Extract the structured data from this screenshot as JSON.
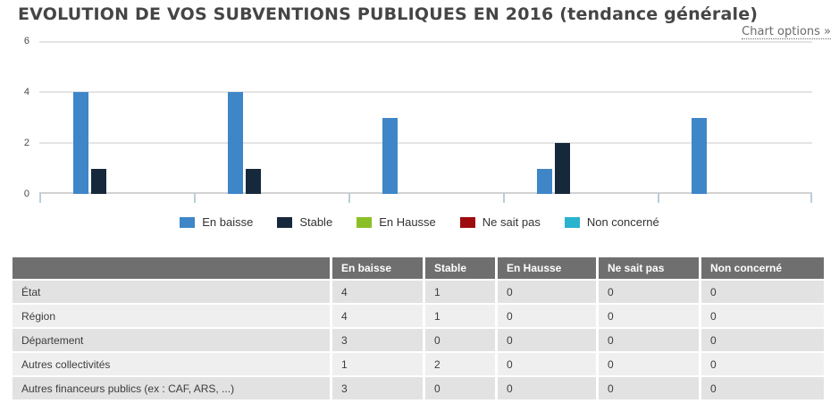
{
  "header": {
    "title": "EVOLUTION DE VOS SUBVENTIONS PUBLIQUES EN 2016 (tendance générale)",
    "chart_options_label": "Chart options »"
  },
  "colors": {
    "en_baisse": "#3e86c8",
    "stable": "#16293c",
    "en_hausse": "#8bbf27",
    "ne_sait_pas": "#9e0b0f",
    "non_concerne": "#28b3cf",
    "gridline": "#e4e4e4",
    "table_header_bg": "#6f6f6f",
    "table_row_odd_bg": "#e2e2e2",
    "table_row_even_bg": "#efefef"
  },
  "chart_data": {
    "type": "bar",
    "title": "EVOLUTION DE VOS SUBVENTIONS PUBLIQUES EN 2016 (tendance générale)",
    "categories": [
      "État",
      "Région",
      "Département",
      "Autres collectivités",
      "Autres financeurs publics (ex : CAF, ARS, ...)"
    ],
    "series": [
      {
        "name": "En baisse",
        "color": "#3e86c8",
        "values": [
          4,
          4,
          3,
          1,
          3
        ]
      },
      {
        "name": "Stable",
        "color": "#16293c",
        "values": [
          1,
          1,
          0,
          2,
          0
        ]
      },
      {
        "name": "En Hausse",
        "color": "#8bbf27",
        "values": [
          0,
          0,
          0,
          0,
          0
        ]
      },
      {
        "name": "Ne sait pas",
        "color": "#9e0b0f",
        "values": [
          0,
          0,
          0,
          0,
          0
        ]
      },
      {
        "name": "Non concerné",
        "color": "#28b3cf",
        "values": [
          0,
          0,
          0,
          0,
          0
        ]
      }
    ],
    "ylim": [
      0,
      6
    ],
    "yticks": [
      0,
      2,
      4,
      6
    ],
    "grid": true,
    "legend_position": "bottom",
    "x_tick_labels_visible": false
  },
  "table": {
    "columns": [
      "",
      "En baisse",
      "Stable",
      "En Hausse",
      "Ne sait pas",
      "Non concerné"
    ],
    "rows": [
      {
        "label": "État",
        "values": [
          4,
          1,
          0,
          0,
          0
        ]
      },
      {
        "label": "Région",
        "values": [
          4,
          1,
          0,
          0,
          0
        ]
      },
      {
        "label": "Département",
        "values": [
          3,
          0,
          0,
          0,
          0
        ]
      },
      {
        "label": "Autres collectivités",
        "values": [
          1,
          2,
          0,
          0,
          0
        ]
      },
      {
        "label": "Autres financeurs publics (ex : CAF, ARS, ...)",
        "values": [
          3,
          0,
          0,
          0,
          0
        ]
      }
    ]
  }
}
